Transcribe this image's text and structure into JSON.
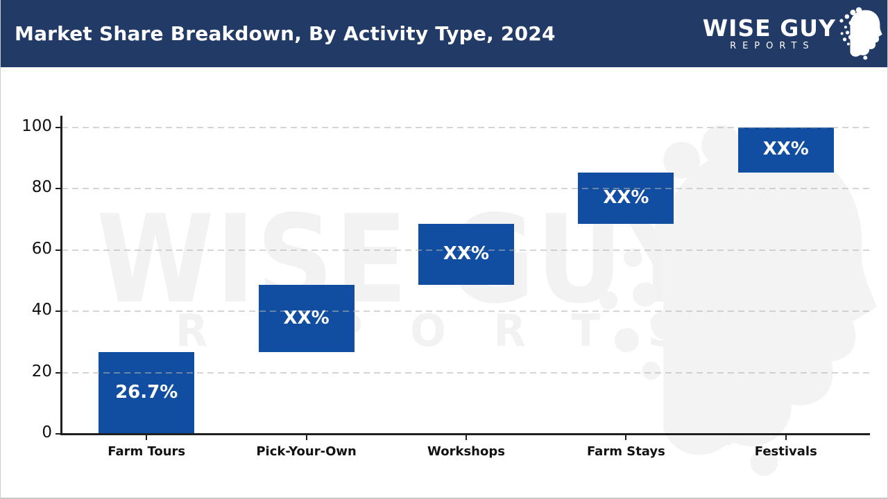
{
  "page": {
    "bg": "#ffffff",
    "border_color": "#cccccc"
  },
  "header": {
    "bg": "#213a66",
    "title": "Market Share Breakdown, By Activity Type, 2024",
    "logo": {
      "line1": "WISE GUY",
      "line2": "REPORTS"
    }
  },
  "watermark": {
    "line1": "WISE GUY",
    "line2": "REPORTS"
  },
  "chart_data": {
    "type": "bar",
    "subtype": "waterfall",
    "title": "Market Share Breakdown, By Activity Type, 2024",
    "categories": [
      "Farm Tours",
      "Pick-Your-Own",
      "Workshops",
      "Farm Stays",
      "Festivals"
    ],
    "segments": [
      {
        "category": "Farm Tours",
        "start": 0,
        "end": 26.7,
        "label": "26.7%"
      },
      {
        "category": "Pick-Your-Own",
        "start": 26.7,
        "end": 48.6,
        "label": "XX%"
      },
      {
        "category": "Workshops",
        "start": 48.6,
        "end": 68.6,
        "label": "XX%"
      },
      {
        "category": "Farm Stays",
        "start": 68.6,
        "end": 85.3,
        "label": "XX%"
      },
      {
        "category": "Festivals",
        "start": 85.3,
        "end": 100.0,
        "label": "XX%"
      }
    ],
    "y_ticks": [
      0,
      20,
      40,
      60,
      80,
      100
    ],
    "ylim": [
      0,
      105
    ],
    "grid": "horizontal-dashed",
    "grid_color": "#d9d9d9",
    "bar_color": "#07479d",
    "axis_color": "#1f1f1f",
    "value_label_color": "#ffffff",
    "legend": null,
    "xlabel": "",
    "ylabel": ""
  }
}
